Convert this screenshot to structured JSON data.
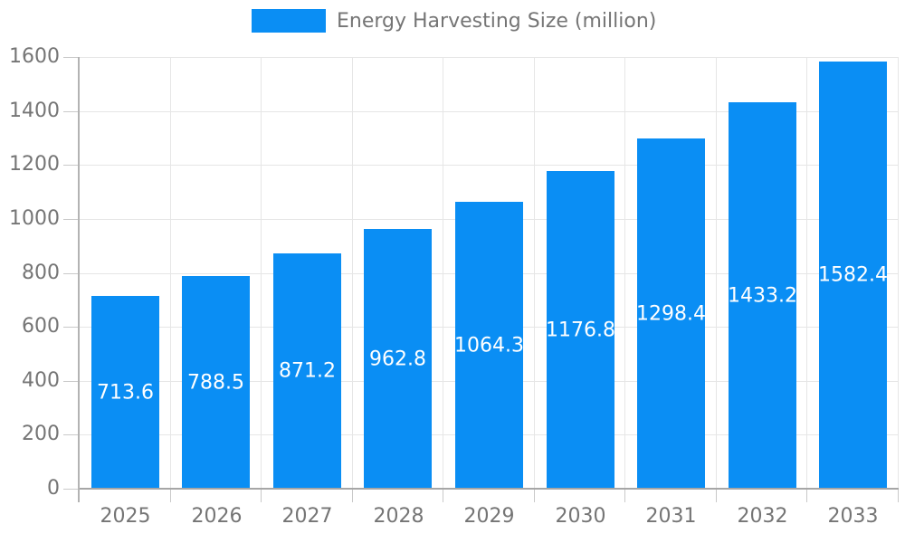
{
  "legend": {
    "label": "Energy Harvesting Size (million)"
  },
  "colors": {
    "bar": "#0a8ef4",
    "grid": "#e6e6e6",
    "axis": "#b3b3b3",
    "baseline": "#a6a6a6",
    "tick": "#c9c9c9",
    "text": "#757575",
    "value_label": "#ffffff",
    "background": "#ffffff"
  },
  "chart_data": {
    "type": "bar",
    "title": "",
    "legend_position": "top",
    "legend_entries": [
      "Energy Harvesting Size (million)"
    ],
    "categories": [
      "2025",
      "2026",
      "2027",
      "2028",
      "2029",
      "2030",
      "2031",
      "2032",
      "2033"
    ],
    "series": [
      {
        "name": "Energy Harvesting Size (million)",
        "values": [
          713.6,
          788.5,
          871.2,
          962.8,
          1064.3,
          1176.8,
          1298.4,
          1433.2,
          1582.4
        ],
        "labels": [
          "713.6",
          "788.5",
          "871.2",
          "962.8",
          "1064.3",
          "1176.8",
          "1298.4",
          "1433.2",
          "1582.4"
        ]
      }
    ],
    "xlabel": "",
    "ylabel": "",
    "ylim": [
      0,
      1600
    ],
    "yticks": [
      0,
      200,
      400,
      600,
      800,
      1000,
      1200,
      1400,
      1600
    ],
    "grid": true,
    "value_labels": "inside-center-white"
  }
}
